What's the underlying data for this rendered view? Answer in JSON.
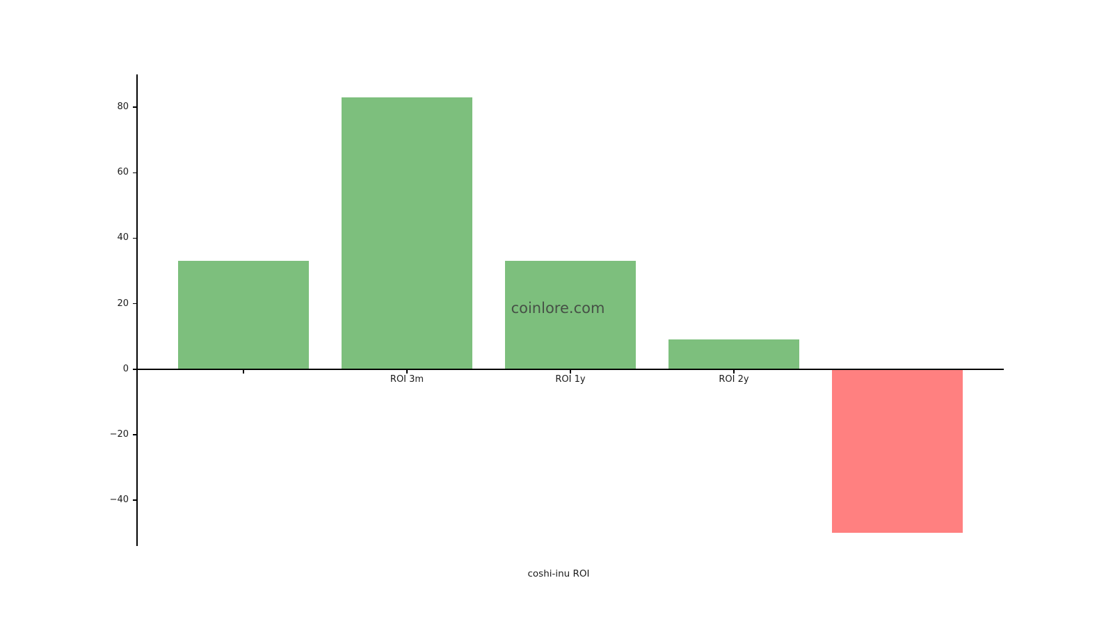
{
  "chart_data": {
    "type": "bar",
    "categories": [
      "",
      "ROI 3m",
      "ROI 1y",
      "ROI 2y",
      ""
    ],
    "values": [
      33,
      83,
      33,
      9,
      -50
    ],
    "bar_colors": [
      "#7dbf7d",
      "#7dbf7d",
      "#7dbf7d",
      "#7dbf7d",
      "#ff8080"
    ],
    "positive_color": "#7dbf7d",
    "negative_color": "#ff8080",
    "yticks": [
      80,
      60,
      40,
      20,
      0,
      -20,
      -40
    ],
    "ylim": [
      -54,
      90
    ],
    "grid": false,
    "legend_position": null,
    "xlabel": "coshi-inu ROI",
    "ylabel": "",
    "watermark": "coinlore.com",
    "axis_color": "#000000",
    "tick_label_color": "#1a1a1a"
  }
}
